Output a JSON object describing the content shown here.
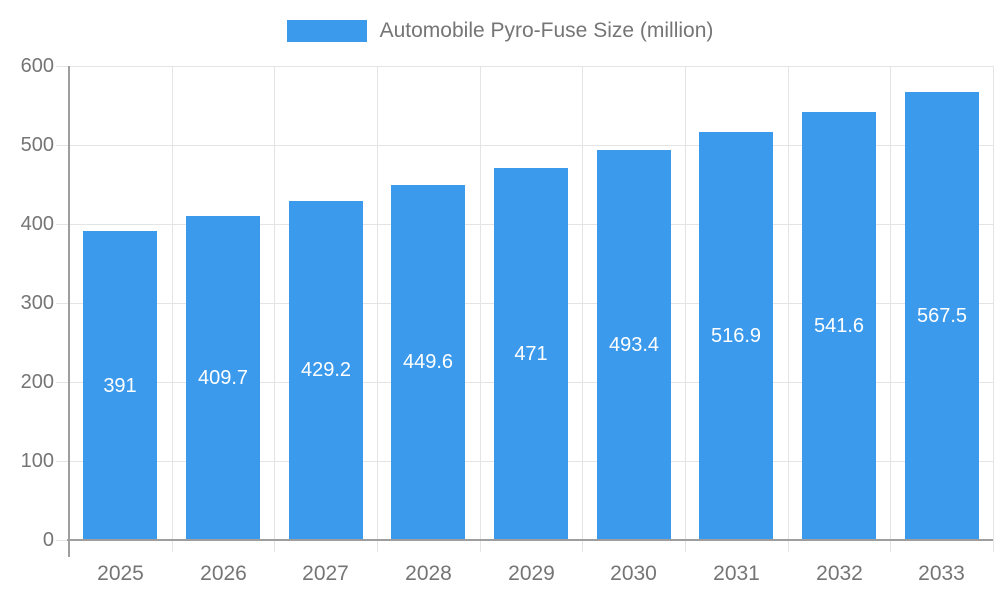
{
  "legend": {
    "label": "Automobile Pyro-Fuse Size (million)"
  },
  "colors": {
    "bar": "#3B9AEC",
    "grid": "#e4e4e4",
    "axis": "#9e9e9e",
    "text": "#757575",
    "bar_label": "#ffffff",
    "background": "#ffffff"
  },
  "chart_data": {
    "type": "bar",
    "title": "Automobile Pyro-Fuse Size (million)",
    "categories": [
      "2025",
      "2026",
      "2027",
      "2028",
      "2029",
      "2030",
      "2031",
      "2032",
      "2033"
    ],
    "values": [
      391,
      409.7,
      429.2,
      449.6,
      471,
      493.4,
      516.9,
      541.6,
      567.5
    ],
    "xlabel": "",
    "ylabel": "",
    "ylim": [
      0,
      600
    ],
    "ytick_step": 100,
    "ytick_labels": [
      "0",
      "100",
      "200",
      "300",
      "400",
      "500",
      "600"
    ],
    "grid": true,
    "legend_position": "top-center",
    "bar_labels": "inside-middle"
  }
}
